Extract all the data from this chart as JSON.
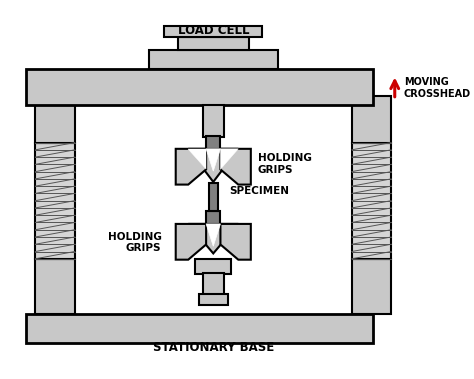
{
  "bg_color": "#ffffff",
  "gray_fill": "#c8c8c8",
  "white_fill": "#ffffff",
  "dark_fill": "#808080",
  "outline_color": "#000000",
  "red_arrow_color": "#cc0000",
  "labels": {
    "load_cell": "LOAD CELL",
    "moving_crosshead": "MOVING\nCROSSHEAD",
    "holding_grips_top": "HOLDING\nGRIPS",
    "specimen": "SPECIMEN",
    "holding_grips_bottom": "HOLDING\nGRIPS",
    "stationary_base": "STATIONARY BASE"
  },
  "figsize": [
    4.74,
    3.79
  ],
  "dpi": 100
}
